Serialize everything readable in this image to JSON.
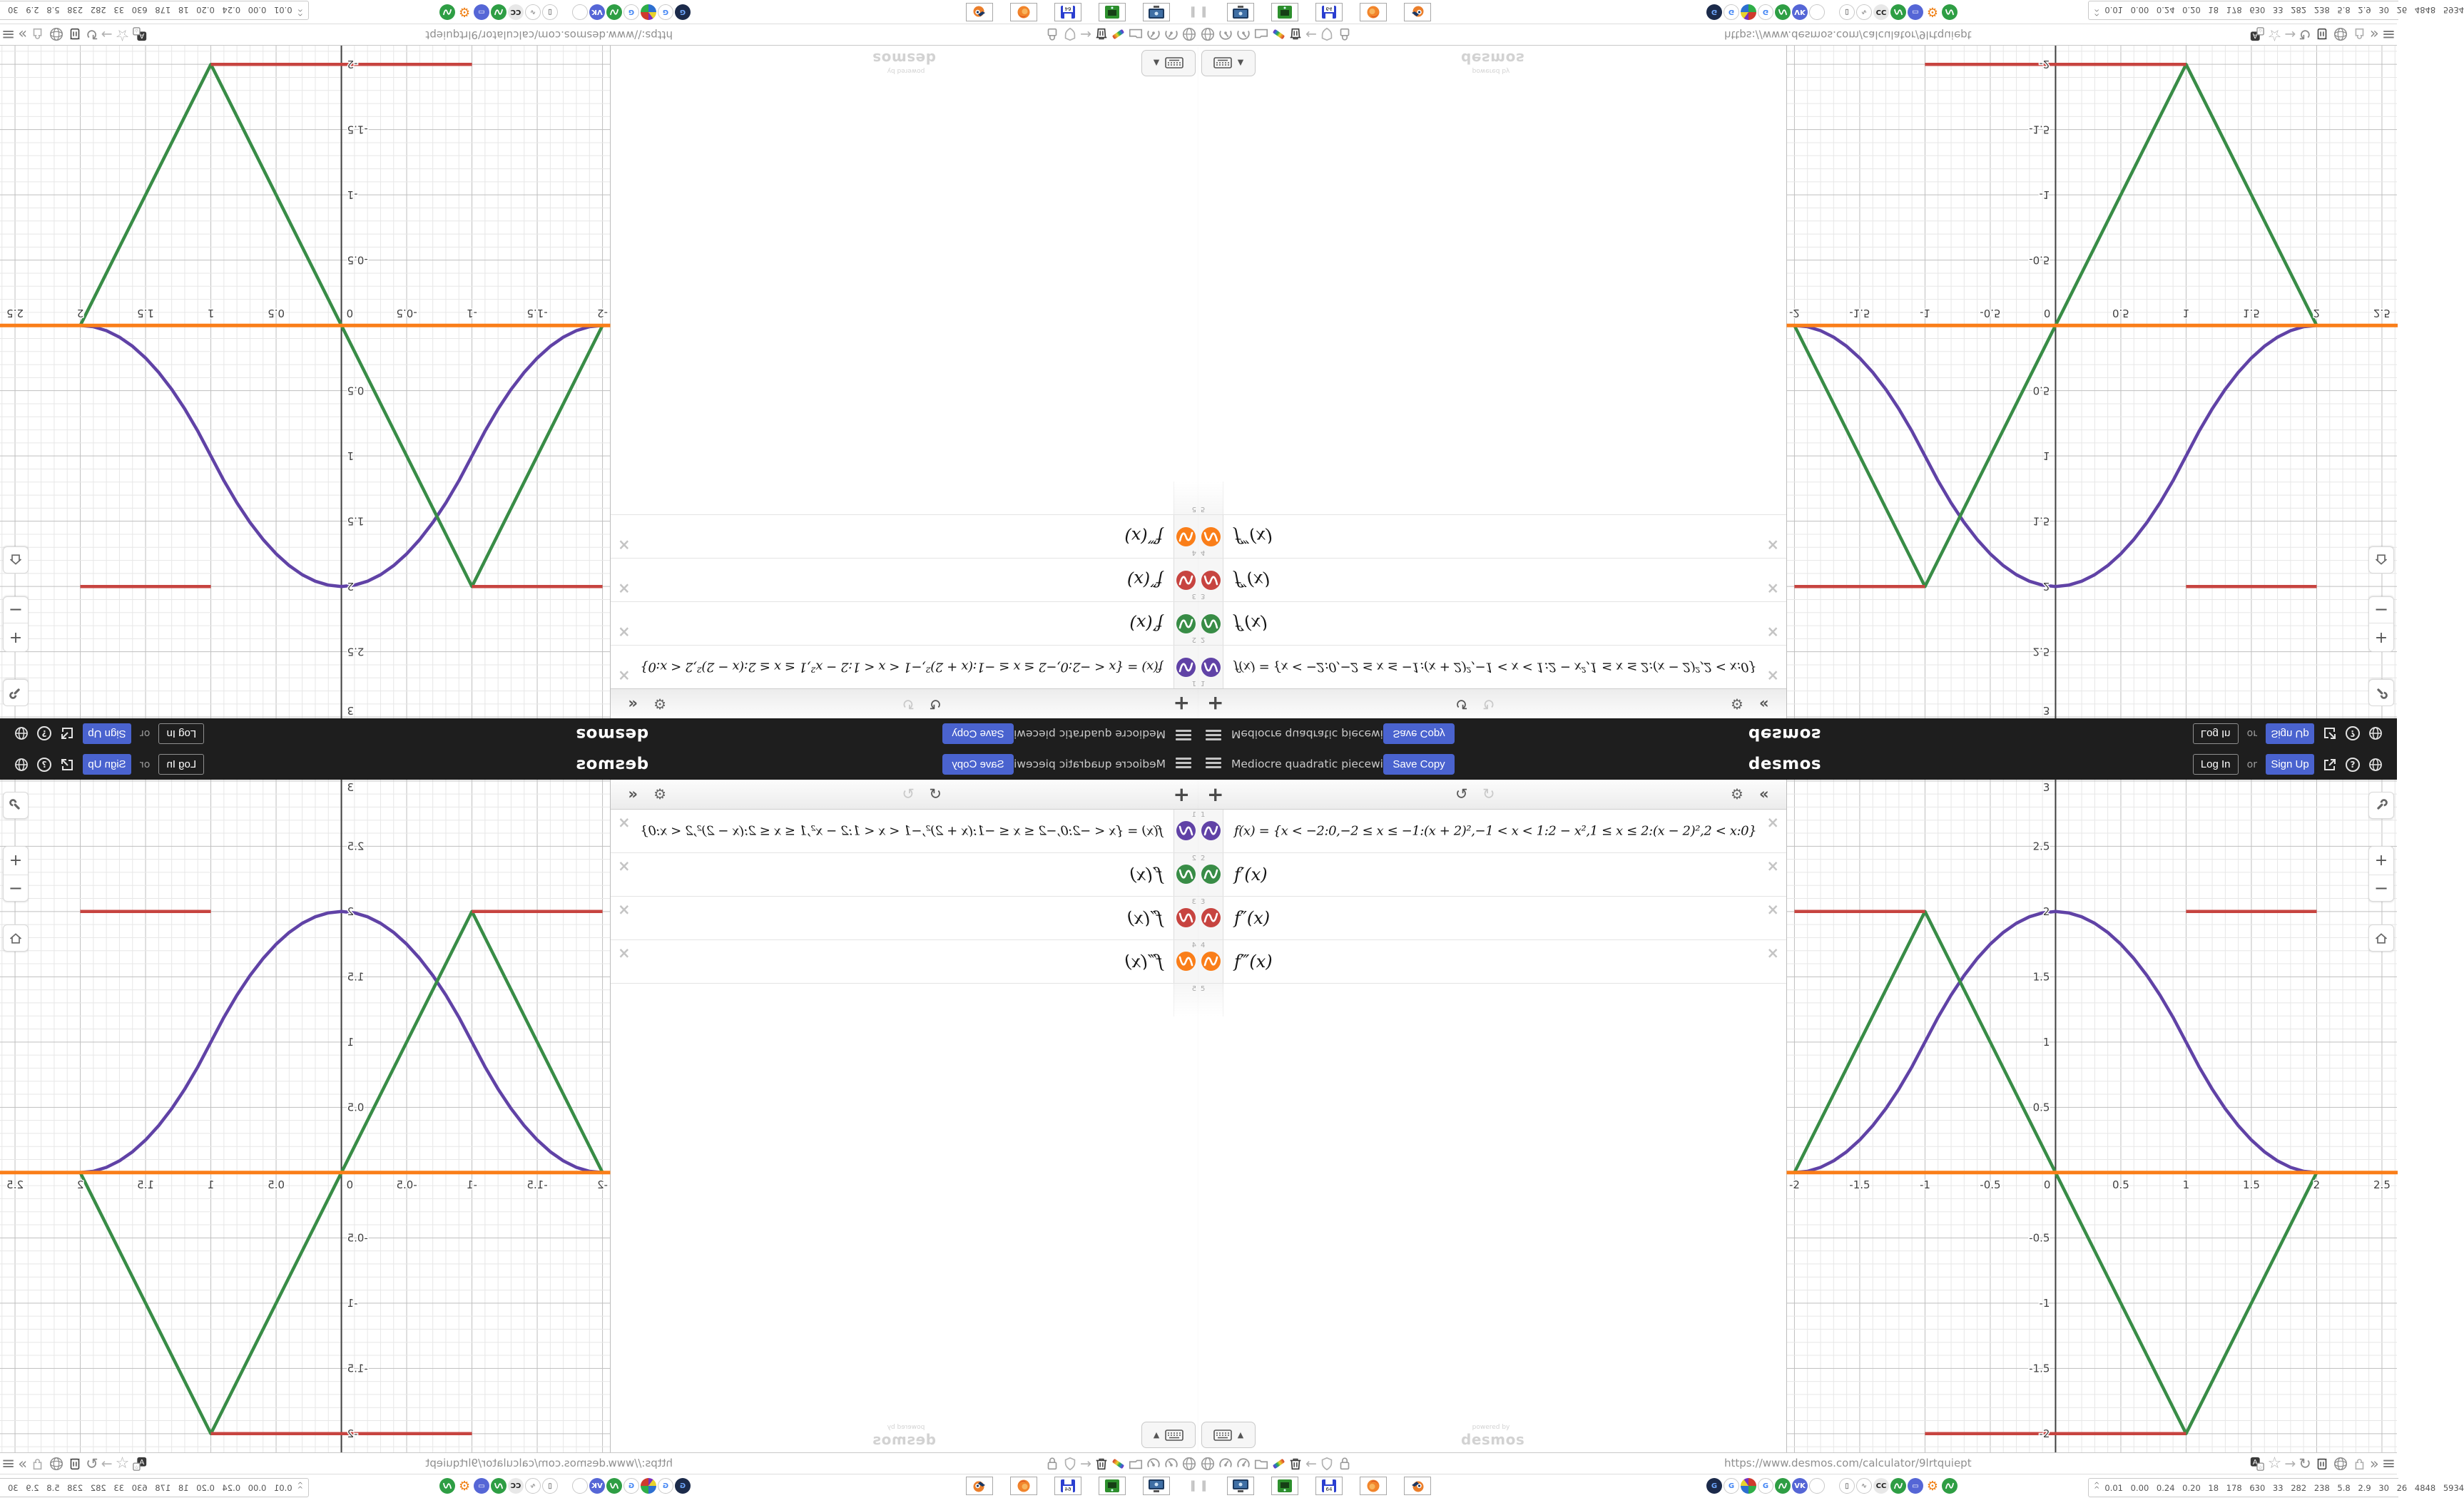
{
  "header": {
    "title": "Mediocre quadratic piecewi...",
    "save_copy": "Save Copy",
    "logo": "desmos",
    "log_in": "Log In",
    "or": "or",
    "sign_up": "Sign Up",
    "help_label": "?",
    "accent_blue": "#4a63cf",
    "bg": "#1e1e1e"
  },
  "panel_toolbar": {
    "add": "+",
    "undo_glyph": "↺",
    "redo_glyph": "↻",
    "gear_glyph": "⚙",
    "collapse": "«"
  },
  "expressions": {
    "close_glyph": "×",
    "next_index": "5",
    "rows": [
      {
        "index": "1",
        "color": "#6042a6",
        "formula": "f(x) = {x < −2:0,−2 ≤ x ≤ −1:(x + 2)²,−1 < x < 1:2 − x²,1 ≤ x ≤ 2:(x − 2)²,2 < x:0}"
      },
      {
        "index": "2",
        "color": "#388c46",
        "formula": "f′(x)"
      },
      {
        "index": "3",
        "color": "#c74440",
        "formula": "f″(x)"
      },
      {
        "index": "4",
        "color": "#fa7e19",
        "formula": "f‴(x)"
      }
    ]
  },
  "graph_controls": {
    "zoom_in": "+",
    "zoom_out": "−"
  },
  "keyboard": {
    "arrow": "▲"
  },
  "watermark": {
    "line1": "powered by",
    "line2": "desmos"
  },
  "browser": {
    "url": "https://www.desmos.com/calculator/9lrtquiept",
    "left_icons": [
      "globe",
      "gauge",
      "gauge",
      "folder",
      "pen",
      "trash",
      "arrow-left",
      "shield",
      "lock"
    ],
    "right_icons": [
      "translate",
      "star",
      "arrow-right",
      "reload",
      "archive",
      "globe",
      "puzzle",
      "chevrons",
      "menu"
    ],
    "left_arrow": "←",
    "right_arrow": "→",
    "reload": "↻",
    "star": "☆",
    "chevrons": "»",
    "menu": "≡",
    "chevron_up": "^"
  },
  "taskbar": {
    "handle": "‖",
    "apps": [
      "screen-tool",
      "card-reader",
      "floppy-64",
      "firefox",
      "blender"
    ],
    "floppy_label": "64",
    "stats_numbers": "0.01 0.00 0.24 0.20 18 178 630 33 282 238 5.8 2.9 30 26 4848 5934",
    "stats_chevrons": "^",
    "pins": [
      {
        "name": "app-g-dark",
        "bg": "#1b2a4a",
        "glyph": "G",
        "fg": "#6fa8ff"
      },
      {
        "name": "app-google",
        "bg": "#ffffff",
        "glyph": "G",
        "fg": "#4285f4",
        "brd": true
      },
      {
        "name": "app-pie",
        "pie": true
      },
      {
        "name": "app-google-2",
        "bg": "#ffffff",
        "glyph": "G",
        "fg": "#4285f4",
        "brd": true
      },
      {
        "name": "app-desmos-green",
        "bg": "#2e9e44",
        "wave": true
      },
      {
        "name": "app-vk",
        "bg": "#5566d6",
        "glyph": "VK"
      },
      {
        "name": "app-thumb",
        "bg": "#ffffff",
        "glyph": "",
        "brd": true
      },
      {
        "gap": true
      },
      {
        "name": "app-trash",
        "bg": "#ffffff",
        "glyph": "▯",
        "fg": "#333333",
        "brd": true
      },
      {
        "name": "app-fish",
        "bg": "#ffffff",
        "glyph": "∿",
        "fg": "#8a8a8a",
        "brd": true
      },
      {
        "name": "app-cc",
        "bg": "#e8e8e8",
        "glyph": "CC",
        "fg": "#222222"
      },
      {
        "name": "app-desmos-green-2",
        "bg": "#2e9e44",
        "wave": true
      },
      {
        "name": "app-chat",
        "bg": "#5566d6",
        "glyph": "▭"
      },
      {
        "name": "app-gear",
        "bg": "#ffffff",
        "glyph": "⚙",
        "fg": "#f07f13",
        "big": true
      },
      {
        "name": "app-desmos-green-3",
        "bg": "#2e9e44",
        "wave": true
      }
    ]
  },
  "chart_data": {
    "type": "line",
    "title": "",
    "xlabel": "",
    "ylabel": "",
    "view": {
      "xmin": -2.057,
      "xmax": 2.615,
      "ymin": -2.143,
      "ymax": 3.01
    },
    "grid": {
      "minor_step": 0.1,
      "major_step": 0.5,
      "minor_color": "#e7e7e7",
      "major_color": "#bfbfbf",
      "axis_color": "#404040"
    },
    "x_ticks": [
      -2,
      -1.5,
      -1,
      -0.5,
      0,
      0.5,
      1,
      1.5,
      2,
      2.5
    ],
    "y_ticks": [
      3,
      2.5,
      2,
      1.5,
      1,
      0.5,
      -0.5,
      -1,
      -1.5,
      -2
    ],
    "series": [
      {
        "name": "f(x)",
        "color": "#6042a6",
        "width": 4.5,
        "segments": [
          [
            [
              -2.06,
              0
            ],
            [
              -2,
              0
            ],
            [
              -1.9,
              0.01
            ],
            [
              -1.8,
              0.04
            ],
            [
              -1.7,
              0.09
            ],
            [
              -1.6,
              0.16
            ],
            [
              -1.5,
              0.25
            ],
            [
              -1.4,
              0.36
            ],
            [
              -1.3,
              0.49
            ],
            [
              -1.2,
              0.64
            ],
            [
              -1.1,
              0.81
            ],
            [
              -1,
              1
            ],
            [
              -0.9,
              1.19
            ],
            [
              -0.8,
              1.36
            ],
            [
              -0.7,
              1.51
            ],
            [
              -0.6,
              1.64
            ],
            [
              -0.5,
              1.75
            ],
            [
              -0.4,
              1.84
            ],
            [
              -0.3,
              1.91
            ],
            [
              -0.2,
              1.96
            ],
            [
              -0.1,
              1.99
            ],
            [
              0,
              2
            ],
            [
              0.1,
              1.99
            ],
            [
              0.2,
              1.96
            ],
            [
              0.3,
              1.91
            ],
            [
              0.4,
              1.84
            ],
            [
              0.5,
              1.75
            ],
            [
              0.6,
              1.64
            ],
            [
              0.7,
              1.51
            ],
            [
              0.8,
              1.36
            ],
            [
              0.9,
              1.19
            ],
            [
              1,
              1
            ],
            [
              1.1,
              0.81
            ],
            [
              1.2,
              0.64
            ],
            [
              1.3,
              0.49
            ],
            [
              1.4,
              0.36
            ],
            [
              1.5,
              0.25
            ],
            [
              1.6,
              0.16
            ],
            [
              1.7,
              0.09
            ],
            [
              1.8,
              0.04
            ],
            [
              1.9,
              0.01
            ],
            [
              2,
              0
            ],
            [
              2.62,
              0
            ]
          ]
        ]
      },
      {
        "name": "f'(x)",
        "color": "#388c46",
        "width": 4.5,
        "segments": [
          [
            [
              -2.06,
              0
            ],
            [
              -2,
              0
            ],
            [
              -1,
              2
            ],
            [
              1,
              -2
            ],
            [
              2,
              0
            ],
            [
              2.62,
              0
            ]
          ]
        ]
      },
      {
        "name": "f''(x)",
        "color": "#c74440",
        "width": 4.5,
        "segments": [
          [
            [
              -2.06,
              0
            ],
            [
              -2,
              0
            ]
          ],
          [
            [
              -2,
              2
            ],
            [
              -1,
              2
            ]
          ],
          [
            [
              -1,
              -2
            ],
            [
              1,
              -2
            ]
          ],
          [
            [
              1,
              2
            ],
            [
              2,
              2
            ]
          ],
          [
            [
              2,
              0
            ],
            [
              2.62,
              0
            ]
          ]
        ]
      },
      {
        "name": "f'''(x)",
        "color": "#fa7e19",
        "width": 5,
        "segments": [
          [
            [
              -2.06,
              0
            ],
            [
              2.62,
              0
            ]
          ]
        ]
      }
    ]
  }
}
